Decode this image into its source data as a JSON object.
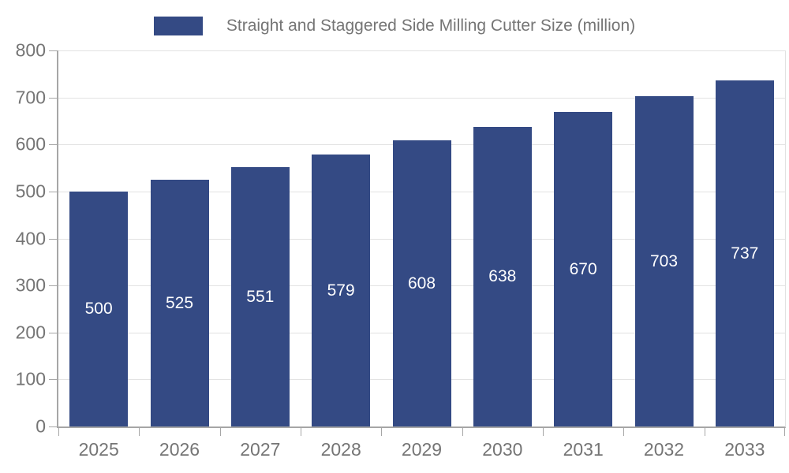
{
  "legend": {
    "swatch_color": "#344a84",
    "label": "Straight and Staggered Side Milling Cutter Size (million)"
  },
  "chart_data": {
    "type": "bar",
    "title": "Straight and Staggered Side Milling Cutter Size (million)",
    "categories": [
      "2025",
      "2026",
      "2027",
      "2028",
      "2029",
      "2030",
      "2031",
      "2032",
      "2033"
    ],
    "values": [
      500,
      525,
      551,
      579,
      608,
      638,
      670,
      703,
      737
    ],
    "xlabel": "",
    "ylabel": "",
    "ylim": [
      0,
      800
    ],
    "yticks": [
      0,
      100,
      200,
      300,
      400,
      500,
      600,
      700,
      800
    ],
    "grid": true,
    "legend_position": "top-center",
    "bar_color": "#344a84",
    "bar_label_color": "#ffffff",
    "axis_color": "#a6a6a6",
    "grid_color": "#e2e2e2",
    "tick_label_color": "#757575"
  }
}
